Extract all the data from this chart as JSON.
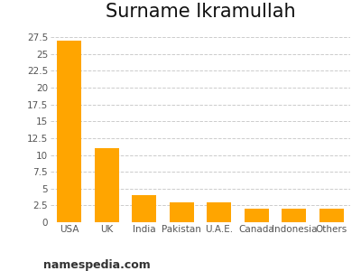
{
  "title": "Surname Ikramullah",
  "categories": [
    "USA",
    "UK",
    "India",
    "Pakistan",
    "U.A.E.",
    "Canada",
    "Indonesia",
    "Others"
  ],
  "values": [
    27.0,
    11.0,
    4.0,
    3.0,
    3.0,
    2.0,
    2.0,
    2.0
  ],
  "bar_color": "#FFA500",
  "background_color": "#ffffff",
  "ylim": [
    0,
    29
  ],
  "yticks": [
    0,
    2.5,
    5,
    7.5,
    10,
    12.5,
    15,
    17.5,
    20,
    22.5,
    25,
    27.5
  ],
  "ytick_labels": [
    "0",
    "2.5",
    "5",
    "7.5",
    "10",
    "12.5",
    "15",
    "17.5",
    "20",
    "22.5",
    "25",
    "27.5"
  ],
  "grid_color": "#cccccc",
  "title_fontsize": 15,
  "tick_fontsize": 7.5,
  "watermark": "namespedia.com",
  "watermark_fontsize": 9,
  "watermark_color": "#333333"
}
